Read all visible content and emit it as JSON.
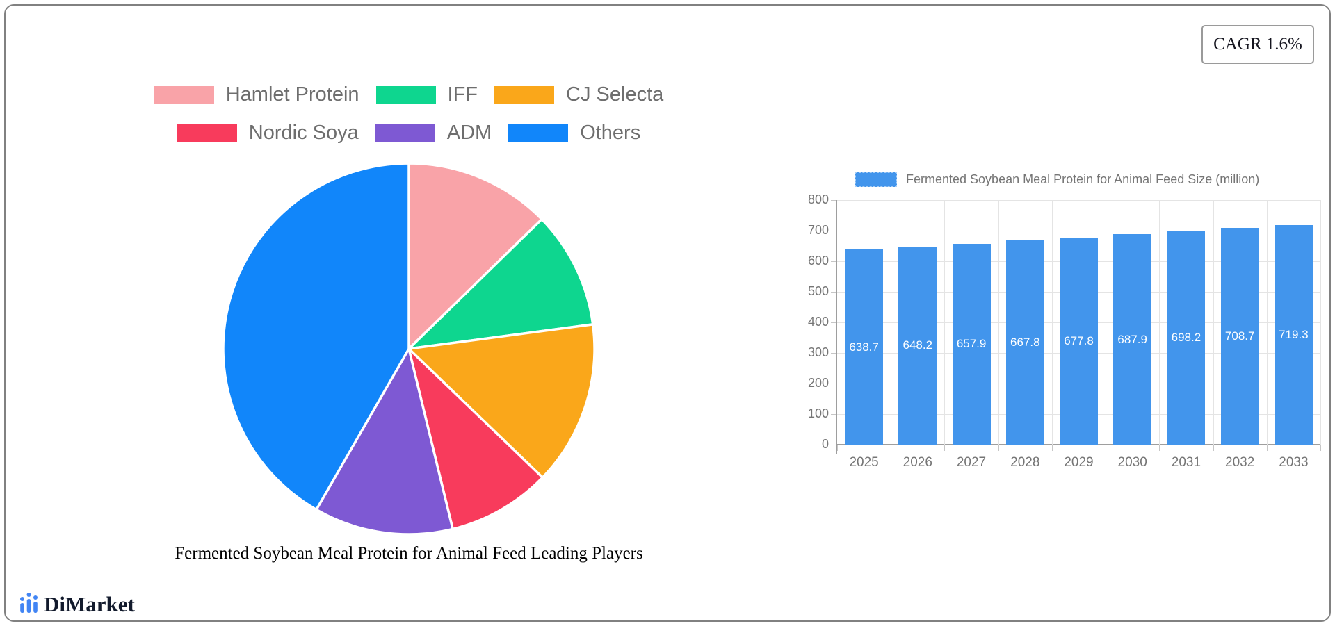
{
  "cagr_badge": "CAGR 1.6%",
  "brand": {
    "name": "DiMarket",
    "icon": "bar-chart-logo-icon",
    "icon_color": "#4285f4"
  },
  "pie_section": {
    "title": "Fermented Soybean Meal Protein for Animal Feed Leading Players"
  },
  "bar_section": {
    "legend_label": "Fermented Soybean Meal Protein for Animal Feed Size (million)"
  },
  "chart_data": [
    {
      "type": "pie",
      "title": "Fermented Soybean Meal Protein for Animal Feed Leading Players",
      "labels": [
        "Hamlet Protein",
        "IFF",
        "CJ Selecta",
        "Nordic Soya",
        "ADM",
        "Others"
      ],
      "values": [
        12.7,
        10.2,
        14.3,
        9.0,
        12.1,
        41.7
      ],
      "unit": "percent_share_estimated",
      "colors": [
        "#f9a3a8",
        "#0ed68f",
        "#faa71a",
        "#f83b5c",
        "#7e59d3",
        "#1186fa"
      ],
      "start_angle": "top",
      "direction": "clockwise",
      "slice_border_color": "#ffffff",
      "legend_position": "top",
      "legend_rows": [
        [
          "Hamlet Protein",
          "IFF",
          "CJ Selecta",
          "Nordic Soya"
        ],
        [
          "ADM",
          "Others"
        ]
      ]
    },
    {
      "type": "bar",
      "title": "Fermented Soybean Meal Protein for Animal Feed Size (million)",
      "categories": [
        "2025",
        "2026",
        "2027",
        "2028",
        "2029",
        "2030",
        "2031",
        "2032",
        "2033"
      ],
      "values": [
        638.7,
        648.2,
        657.9,
        667.8,
        677.8,
        687.9,
        698.2,
        708.7,
        719.3
      ],
      "value_labels": [
        "638.7",
        "648.2",
        "657.9",
        "667.8",
        "677.8",
        "687.9",
        "698.2",
        "708.7",
        "719.3"
      ],
      "xlabel": "",
      "ylabel": "",
      "ylim": [
        0,
        800
      ],
      "yticks": [
        0,
        100,
        200,
        300,
        400,
        500,
        600,
        700,
        800
      ],
      "bar_color": "#4295ec",
      "value_label_color": "#ffffff",
      "grid": true,
      "legend_position": "top"
    }
  ]
}
